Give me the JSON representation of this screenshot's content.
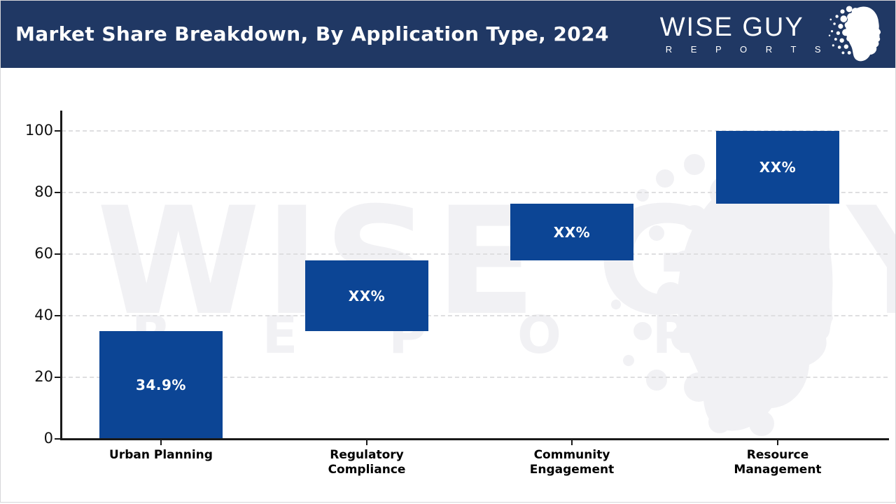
{
  "header": {
    "title": "Market Share Breakdown, By Application Type, 2024",
    "bg_color": "#203864",
    "logo": {
      "line1": "WISE GUY",
      "line2": "R E P O R T S"
    }
  },
  "watermark": {
    "line1": "WISE GUY",
    "line2": "R E P O R T S"
  },
  "chart_data": {
    "type": "bar",
    "subtype": "waterfall",
    "title": "Market Share Breakdown, By Application Type, 2024",
    "categories": [
      "Urban Planning",
      "Regulatory Compliance",
      "Community Engagement",
      "Resource Management"
    ],
    "category_lines": [
      [
        "Urban Planning"
      ],
      [
        "Regulatory",
        "Compliance"
      ],
      [
        "Community",
        "Engagement"
      ],
      [
        "Resource",
        "Management"
      ]
    ],
    "segments": [
      {
        "label": "Urban Planning",
        "start": 0,
        "end": 34.9,
        "display": "34.9%"
      },
      {
        "label": "Regulatory Compliance",
        "start": 34.9,
        "end": 57.9,
        "display": "XX%"
      },
      {
        "label": "Community Engagement",
        "start": 57.9,
        "end": 76.3,
        "display": "XX%"
      },
      {
        "label": "Resource Management",
        "start": 76.3,
        "end": 100,
        "display": "XX%"
      }
    ],
    "xlabel": "",
    "ylabel": "",
    "ylim": [
      0,
      106
    ],
    "yticks": [
      0,
      20,
      40,
      60,
      80,
      100
    ],
    "grid": "horizontal dashed",
    "legend": null,
    "bar_color": "#0c4595",
    "value_label_color": "#ffffff"
  }
}
